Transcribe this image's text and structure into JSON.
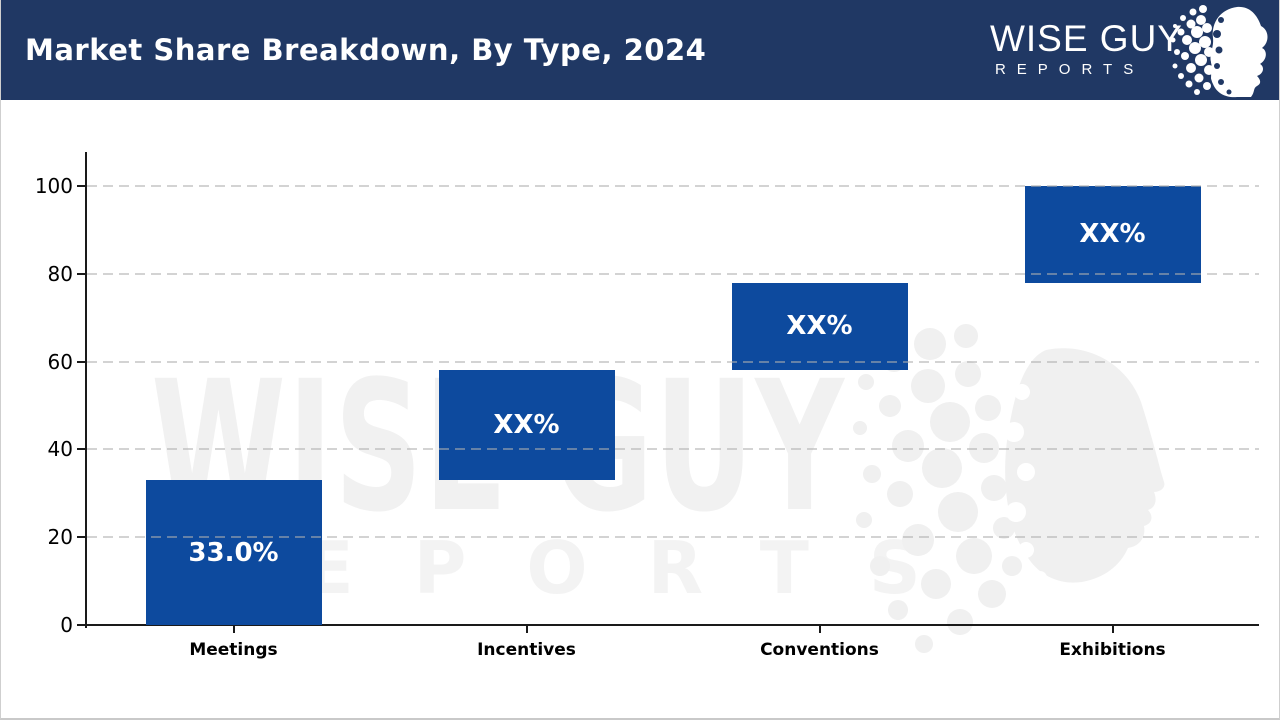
{
  "header": {
    "title": "Market Share Breakdown, By Type, 2024",
    "bg_color": "#203864",
    "logo": {
      "line1": "WISE GUY",
      "line2": "REPORTS"
    }
  },
  "watermark": {
    "line1": "WISE GUY",
    "line2": "REPORTS",
    "color": "#f1f1f1"
  },
  "chart_data": {
    "type": "bar",
    "variant": "waterfall",
    "title": "Market Share Breakdown, By Type, 2024",
    "categories": [
      "Meetings",
      "Incentives",
      "Conventions",
      "Exhibitions"
    ],
    "segments": [
      {
        "category": "Meetings",
        "start": 0,
        "end": 33,
        "label": "33.0%"
      },
      {
        "category": "Incentives",
        "start": 33,
        "end": 58,
        "label": "XX%"
      },
      {
        "category": "Conventions",
        "start": 58,
        "end": 78,
        "label": "XX%"
      },
      {
        "category": "Exhibitions",
        "start": 78,
        "end": 100,
        "label": "XX%"
      }
    ],
    "values": [
      33,
      25,
      20,
      22
    ],
    "xlabel": "",
    "ylabel": "",
    "ylim": [
      0,
      100
    ],
    "yticks": [
      0,
      20,
      40,
      60,
      80,
      100
    ],
    "grid": "horizontal-dashed",
    "legend": "none",
    "bar_color": "#0d4a9e",
    "bar_label_color": "#ffffff",
    "axis_color": "#1a1a1a"
  }
}
